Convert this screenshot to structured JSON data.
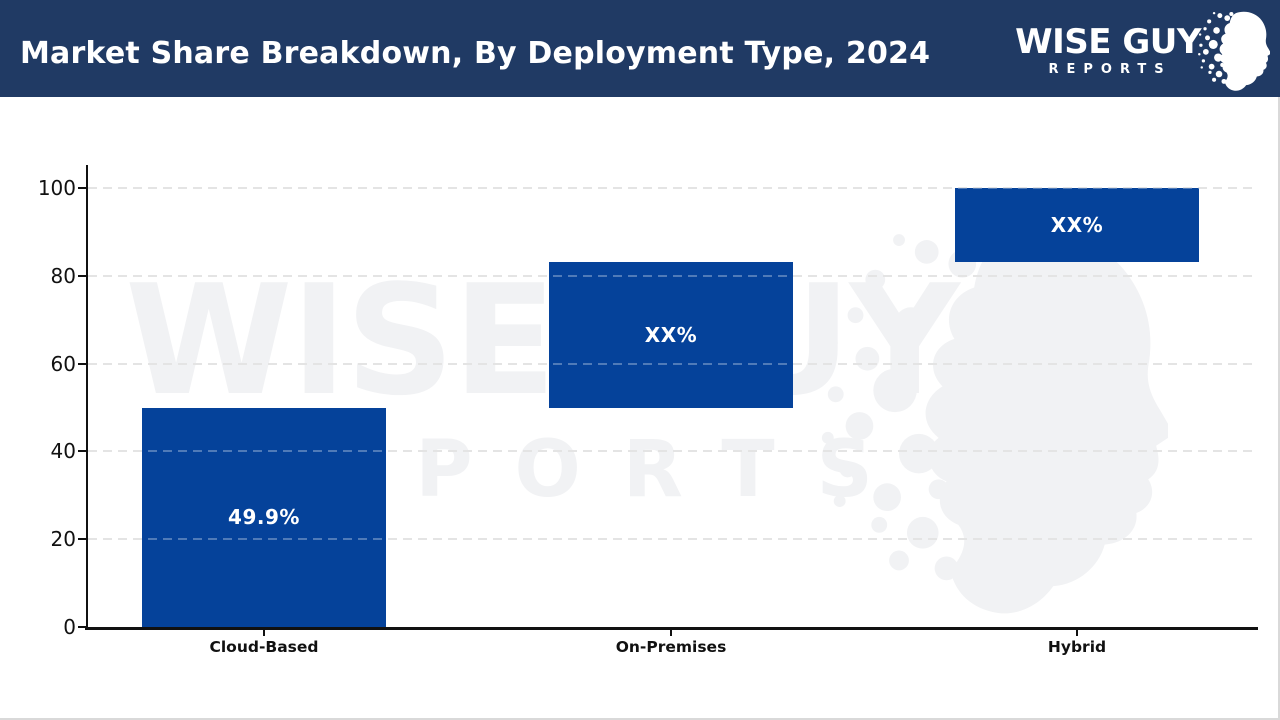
{
  "header": {
    "title": "Market Share Breakdown, By Deployment Type, 2024",
    "brand": {
      "name": "Wise Guy Reports",
      "wordmark": "WISE GUY",
      "wordmark_sub": "REPORTS"
    }
  },
  "watermark": {
    "line1": "WISE GUY",
    "line2": "REPORTS"
  },
  "chart_data": {
    "type": "bar",
    "subtype": "floating-waterfall",
    "title": "Market Share Breakdown, By Deployment Type, 2024",
    "categories": [
      "Cloud-Based",
      "On-Premises",
      "Hybrid"
    ],
    "segments": [
      {
        "category": "Cloud-Based",
        "start": 0,
        "end": 49.9,
        "label": "49.9%"
      },
      {
        "category": "On-Premises",
        "start": 49.9,
        "end": 83.2,
        "label": "XX%"
      },
      {
        "category": "Hybrid",
        "start": 83.2,
        "end": 100,
        "label": "XX%"
      }
    ],
    "xlabel": "",
    "ylabel": "",
    "ylim": [
      0,
      100
    ],
    "yticks": [
      0,
      20,
      40,
      60,
      80,
      100
    ],
    "grid": "dashed-horizontal",
    "legend": "none"
  },
  "colors": {
    "header_bg": "#203a64",
    "bar": "#05429a",
    "grid": "#d9d9d9",
    "axis": "#111111",
    "text": "#111111",
    "bar_label": "#ffffff",
    "watermark": "#f1f2f4",
    "page_border": "#d9d9d9",
    "title_text": "#ffffff"
  }
}
